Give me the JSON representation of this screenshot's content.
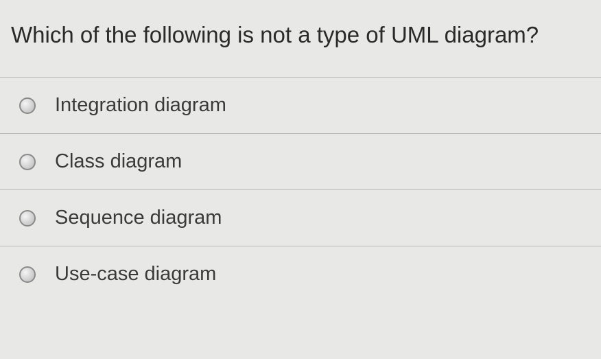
{
  "question": {
    "text": "Which of the following is not a type of UML diagram?"
  },
  "options": [
    {
      "label": "Integration diagram"
    },
    {
      "label": "Class diagram"
    },
    {
      "label": "Sequence diagram"
    },
    {
      "label": "Use-case diagram"
    }
  ],
  "colors": {
    "background": "#e8e8e6",
    "text": "#2a2a2a",
    "option_text": "#3a3a3a",
    "divider": "#bababa",
    "radio_border": "#8a8a8a"
  }
}
